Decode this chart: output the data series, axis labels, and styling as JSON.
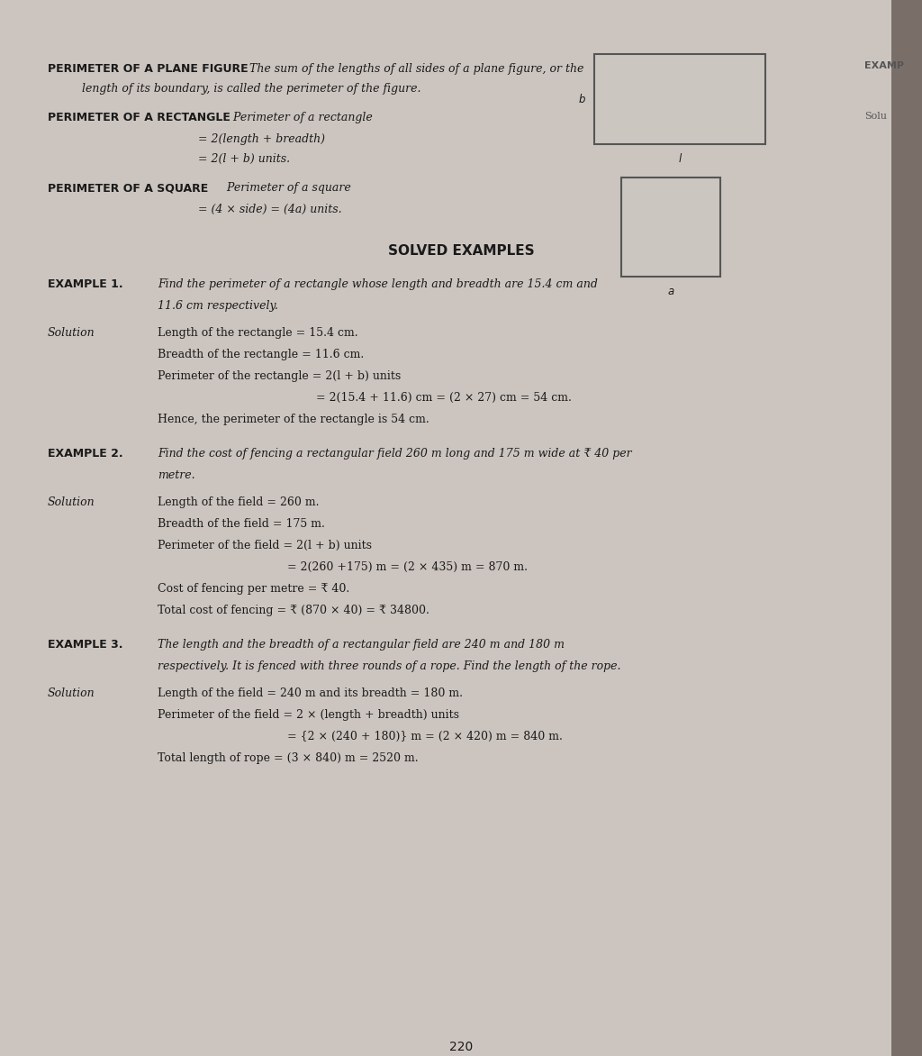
{
  "page_bg": "#ccc5bf",
  "right_edge_color": "#8a7e78",
  "text_color": "#1a1a1a",
  "diagram_bg": "#cdc7c1",
  "diagram_edge": "#555555",
  "title_bold": "PERIMETER OF A PLANE FIGURE",
  "title_italic1": " The sum of the lengths of all sides of a plane figure, or the",
  "title_line2": "     length of its boundary, is called the perimeter of the figure.",
  "rect_heading_bold": "PERIMETER OF A RECTANGLE",
  "rect_heading_italic": " Perimeter of a rectangle",
  "rect_line1": "= 2(length + breadth)",
  "rect_line2": "= 2(l + b) units.",
  "sq_heading_bold": "PERIMETER OF A SQUARE",
  "sq_heading_italic": " Perimeter of a square",
  "sq_line1": "= (4 × side) = (4a) units.",
  "solved_header": "SOLVED EXAMPLES",
  "ex1_label": "EXAMPLE 1.",
  "ex1_line1": "Find the perimeter of a rectangle whose length and breadth are 15.4 cm and",
  "ex1_line2": "11.6 cm respectively.",
  "ex1_sol_label": "Solution",
  "ex1_sol_lines": [
    "Length of the rectangle = 15.4 cm.",
    "Breadth of the rectangle = 11.6 cm.",
    "Perimeter of the rectangle = 2(l + b) units",
    "                                            = 2(15.4 + 11.6) cm = (2 × 27) cm = 54 cm.",
    "Hence, the perimeter of the rectangle is 54 cm."
  ],
  "ex2_label": "EXAMPLE 2.",
  "ex2_line1": "Find the cost of fencing a rectangular field 260 m long and 175 m wide at ₹ 40 per",
  "ex2_line2": "metre.",
  "ex2_sol_label": "Solution",
  "ex2_sol_lines": [
    "Length of the field = 260 m.",
    "Breadth of the field = 175 m.",
    "Perimeter of the field = 2(l + b) units",
    "                                    = 2(260 +175) m = (2 × 435) m = 870 m.",
    "Cost of fencing per metre = ₹ 40.",
    "Total cost of fencing = ₹ (870 × 40) = ₹ 34800."
  ],
  "ex3_label": "EXAMPLE 3.",
  "ex3_line1": "The length and the breadth of a rectangular field are 240 m and 180 m",
  "ex3_line2": "respectively. It is fenced with three rounds of a rope. Find the length of the rope.",
  "ex3_sol_label": "Solution",
  "ex3_sol_lines": [
    "Length of the field = 240 m and its breadth = 180 m.",
    "Perimeter of the field = 2 × (length + breadth) units",
    "                                    = {2 × (240 + 180)} m = (2 × 420) m = 840 m.",
    "Total length of rope = (3 × 840) m = 2520 m."
  ],
  "page_number": "220",
  "examp_label": "EXAMP",
  "soln_label": "Solu"
}
